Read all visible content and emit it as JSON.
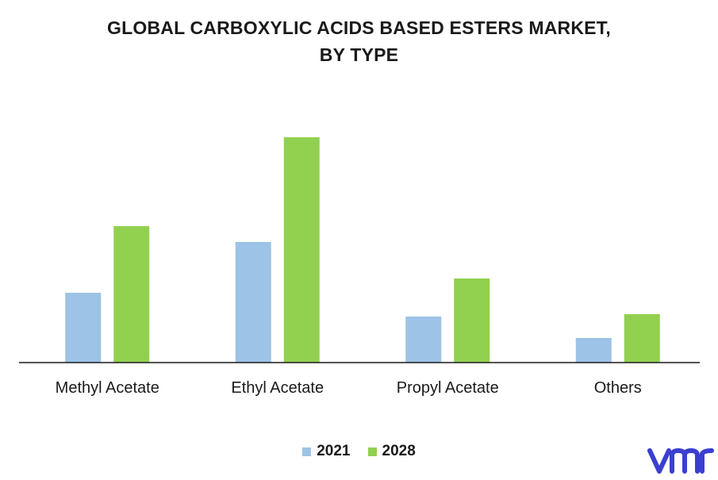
{
  "chart_data": {
    "type": "bar",
    "title_line1": "GLOBAL CARBOXYLIC ACIDS BASED ESTERS MARKET,",
    "title_line2": "BY TYPE",
    "categories": [
      "Methyl Acetate",
      "Ethyl Acetate",
      "Propyl Acetate",
      "Others"
    ],
    "series": [
      {
        "name": "2021",
        "color": "#9DC3E6",
        "values": [
          88,
          152,
          58,
          31
        ]
      },
      {
        "name": "2028",
        "color": "#92D050",
        "values": [
          172,
          284,
          106,
          61
        ]
      }
    ],
    "ylim": [
      0,
      300
    ],
    "grid": false,
    "legend_position": "bottom"
  },
  "logo": {
    "icon": "vmr-logo-icon",
    "color": "#3A3FD0"
  }
}
